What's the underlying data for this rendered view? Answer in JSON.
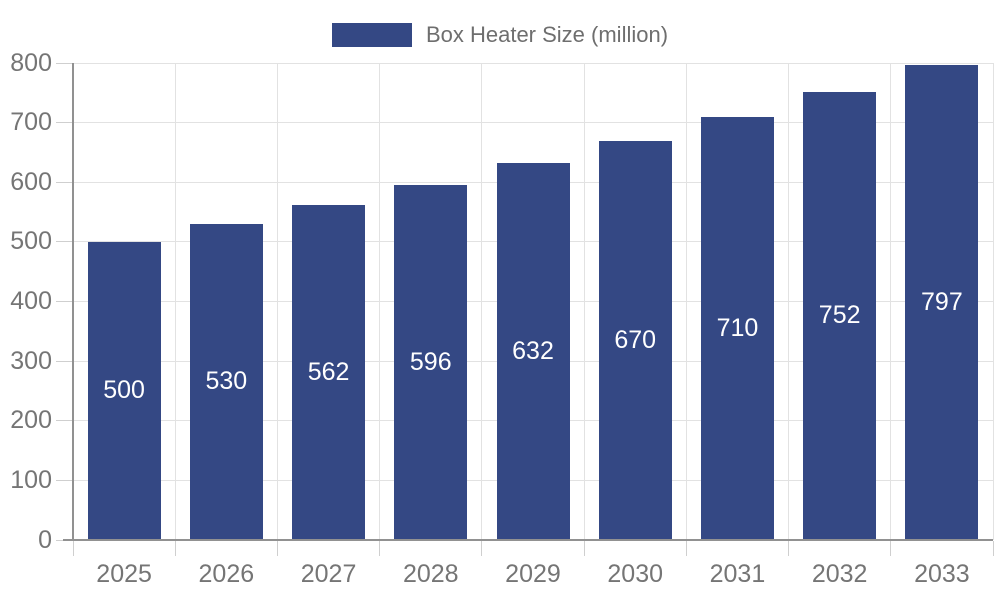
{
  "legend": {
    "label": "Box Heater Size (million)"
  },
  "colors": {
    "bar": "#344884",
    "bar_label": "#ffffff",
    "axis_line": "#919191",
    "grid_line": "#e2e2e2",
    "tick": "#cfcfcf",
    "axis_text": "#757575",
    "legend_text": "#6e6e6e",
    "background": "#ffffff"
  },
  "chart_data": {
    "type": "bar",
    "title": "",
    "xlabel": "",
    "ylabel": "",
    "categories": [
      "2025",
      "2026",
      "2027",
      "2028",
      "2029",
      "2030",
      "2031",
      "2032",
      "2033"
    ],
    "series": [
      {
        "name": "Box Heater Size (million)",
        "values": [
          500,
          530,
          562,
          596,
          632,
          670,
          710,
          752,
          797
        ]
      }
    ],
    "ylim": [
      0,
      800
    ],
    "ytick_step": 100,
    "ytick_labels": [
      "0",
      "100",
      "200",
      "300",
      "400",
      "500",
      "600",
      "700",
      "800"
    ],
    "grid": true,
    "legend_position": "top",
    "value_labels": "inside-center"
  }
}
